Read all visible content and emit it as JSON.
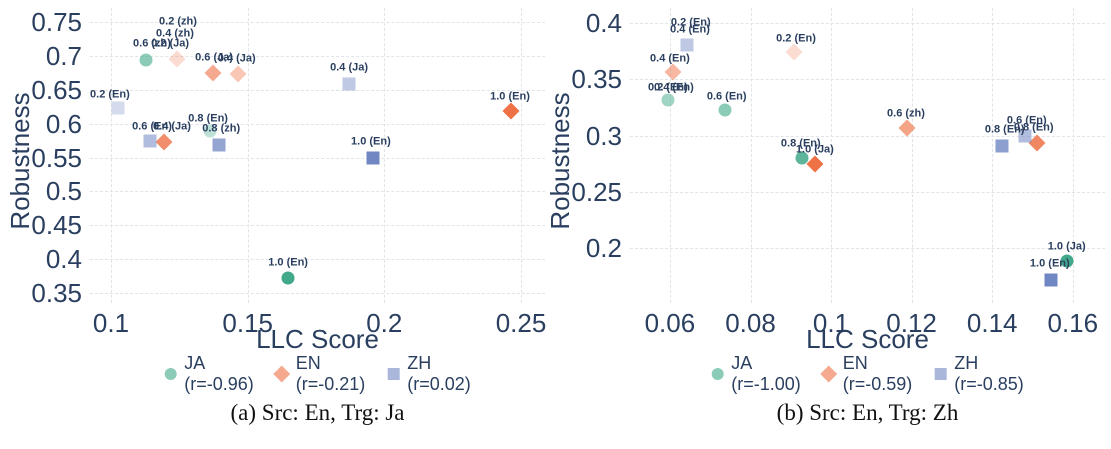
{
  "figure": {
    "background": "#ffffff",
    "text_color": "#2a3f5f",
    "grid_color": "#e0e3e8",
    "annotation_color": "#2a3f5f"
  },
  "chart_data": [
    {
      "id": "a",
      "type": "scatter",
      "caption": "(a) Src: En, Trg: Ja",
      "xlabel": "LLC Score",
      "ylabel": "Robustness",
      "grid": true,
      "legend_position": "bottom",
      "x_range": [
        0.0923,
        0.2588
      ],
      "y_range": [
        0.3353,
        0.7707
      ],
      "x_ticks": [
        0.1,
        0.15,
        0.2,
        0.25
      ],
      "x_tick_labels": [
        "0.1",
        "0.15",
        "0.2",
        "0.25"
      ],
      "y_ticks": [
        0.75,
        0.7,
        0.65,
        0.6,
        0.55,
        0.5,
        0.45,
        0.4,
        0.35
      ],
      "y_tick_labels": [
        "0.75",
        "0.7",
        "0.65",
        "0.6",
        "0.55",
        "0.5",
        "0.45",
        "0.4",
        "0.35"
      ],
      "series": [
        {
          "name": "JA (r=-0.96)",
          "marker": "circle",
          "color": "#41a98a",
          "points": [
            {
              "x": 0.1128,
              "y": 0.6939,
              "alpha": 0.6
            },
            {
              "x": 0.1362,
              "y": 0.5891,
              "alpha": 0.35
            },
            {
              "x": 0.1648,
              "y": 0.3722,
              "alpha": 1.0
            }
          ]
        },
        {
          "name": "EN (r=-0.21)",
          "marker": "diamond",
          "color": "#ef7246",
          "points": [
            {
              "x": 0.1242,
              "y": 0.6954,
              "alpha": 0.25
            },
            {
              "x": 0.1373,
              "y": 0.6747,
              "alpha": 0.6
            },
            {
              "x": 0.1465,
              "y": 0.6732,
              "alpha": 0.4
            },
            {
              "x": 0.1194,
              "y": 0.5729,
              "alpha": 0.8
            },
            {
              "x": 0.2464,
              "y": 0.6186,
              "alpha": 1.0
            }
          ]
        },
        {
          "name": "ZH (r=0.02)",
          "marker": "square",
          "color": "#7187c3",
          "points": [
            {
              "x": 0.1026,
              "y": 0.6231,
              "alpha": 0.3
            },
            {
              "x": 0.1143,
              "y": 0.5744,
              "alpha": 0.55
            },
            {
              "x": 0.1395,
              "y": 0.5685,
              "alpha": 0.75
            },
            {
              "x": 0.1871,
              "y": 0.6585,
              "alpha": 0.45
            },
            {
              "x": 0.1959,
              "y": 0.5493,
              "alpha": 1.0
            }
          ]
        }
      ],
      "annotations": [
        {
          "text": "0.2 (zh)",
          "x": 0.1245,
          "y": 0.75
        },
        {
          "text": "0.4 (zh)",
          "x": 0.1234,
          "y": 0.7323
        },
        {
          "text": "0.6 (zh)",
          "x": 0.115,
          "y": 0.7175
        },
        {
          "text": "0.2 (Ja)",
          "x": 0.1216,
          "y": 0.7175
        },
        {
          "text": "0.6 (Ja)",
          "x": 0.1377,
          "y": 0.6976
        },
        {
          "text": "0.4 (Ja)",
          "x": 0.146,
          "y": 0.6961
        },
        {
          "text": "0.4 (Ja)",
          "x": 0.1871,
          "y": 0.6821
        },
        {
          "text": "0.2 (En)",
          "x": 0.0996,
          "y": 0.6423
        },
        {
          "text": "0.8 (En)",
          "x": 0.1355,
          "y": 0.6069
        },
        {
          "text": "0.6 (En)",
          "x": 0.115,
          "y": 0.595
        },
        {
          "text": "0.4 (Ja)",
          "x": 0.1223,
          "y": 0.595
        },
        {
          "text": "0.8 (zh)",
          "x": 0.1403,
          "y": 0.592
        },
        {
          "text": "1.0 (En)",
          "x": 0.1951,
          "y": 0.5729
        },
        {
          "text": "1.0 (En)",
          "x": 0.246,
          "y": 0.6393
        },
        {
          "text": "1.0 (En)",
          "x": 0.1648,
          "y": 0.3943
        }
      ]
    },
    {
      "id": "b",
      "type": "scatter",
      "caption": "(b) Src: En, Trg: Zh",
      "xlabel": "LLC Score",
      "ylabel": "Robustness",
      "grid": true,
      "legend_position": "bottom",
      "x_range": [
        0.0501,
        0.168
      ],
      "y_range": [
        0.1511,
        0.4133
      ],
      "x_ticks": [
        0.06,
        0.08,
        0.1,
        0.12,
        0.14,
        0.16
      ],
      "x_tick_labels": [
        "0.06",
        "0.08",
        "0.1",
        "0.12",
        "0.14",
        "0.16"
      ],
      "y_ticks": [
        0.4,
        0.35,
        0.3,
        0.25,
        0.2
      ],
      "y_tick_labels": [
        "0.4",
        "0.35",
        "0.3",
        "0.25",
        "0.2"
      ],
      "series": [
        {
          "name": "JA (r=-1.00)",
          "marker": "circle",
          "color": "#41a98a",
          "points": [
            {
              "x": 0.0595,
              "y": 0.3316,
              "alpha": 0.5
            },
            {
              "x": 0.0736,
              "y": 0.3227,
              "alpha": 0.6
            },
            {
              "x": 0.0928,
              "y": 0.28,
              "alpha": 0.85
            },
            {
              "x": 0.1585,
              "y": 0.1884,
              "alpha": 1.0
            }
          ]
        },
        {
          "name": "EN (r=-0.59)",
          "marker": "diamond",
          "color": "#ef7246",
          "points": [
            {
              "x": 0.0908,
              "y": 0.3742,
              "alpha": 0.25
            },
            {
              "x": 0.0607,
              "y": 0.3564,
              "alpha": 0.5
            },
            {
              "x": 0.1188,
              "y": 0.3067,
              "alpha": 0.65
            },
            {
              "x": 0.1511,
              "y": 0.2933,
              "alpha": 0.85
            },
            {
              "x": 0.096,
              "y": 0.2747,
              "alpha": 1.0
            }
          ]
        },
        {
          "name": "ZH (r=-0.85)",
          "marker": "square",
          "color": "#7187c3",
          "points": [
            {
              "x": 0.0642,
              "y": 0.3804,
              "alpha": 0.45
            },
            {
              "x": 0.1481,
              "y": 0.2996,
              "alpha": 0.55
            },
            {
              "x": 0.1424,
              "y": 0.2907,
              "alpha": 0.8
            },
            {
              "x": 0.1545,
              "y": 0.1716,
              "alpha": 1.0
            }
          ]
        }
      ],
      "annotations": [
        {
          "text": "0.2 (En)",
          "x": 0.0652,
          "y": 0.3996
        },
        {
          "text": "0.4 (En)",
          "x": 0.065,
          "y": 0.3938
        },
        {
          "text": "0.4 (En)",
          "x": 0.06,
          "y": 0.368
        },
        {
          "text": "0.2 (En)",
          "x": 0.0913,
          "y": 0.3858
        },
        {
          "text": "0.2 (En)",
          "x": 0.0595,
          "y": 0.3422
        },
        {
          "text": "0.4 (En)",
          "x": 0.061,
          "y": 0.3422
        },
        {
          "text": "0.6 (En)",
          "x": 0.0741,
          "y": 0.3342
        },
        {
          "text": "0.6 (zh)",
          "x": 0.1186,
          "y": 0.3191
        },
        {
          "text": "0.8 (En)",
          "x": 0.0925,
          "y": 0.2929
        },
        {
          "text": "1.0 (Ja)",
          "x": 0.096,
          "y": 0.2871
        },
        {
          "text": "0.6 (En)",
          "x": 0.1486,
          "y": 0.3133
        },
        {
          "text": "0.8 (En)",
          "x": 0.1431,
          "y": 0.3053
        },
        {
          "text": "0.8 (En)",
          "x": 0.1503,
          "y": 0.3071
        },
        {
          "text": "1.0 (Ja)",
          "x": 0.1585,
          "y": 0.2009
        },
        {
          "text": "1.0 (En)",
          "x": 0.1543,
          "y": 0.1858
        }
      ]
    }
  ]
}
